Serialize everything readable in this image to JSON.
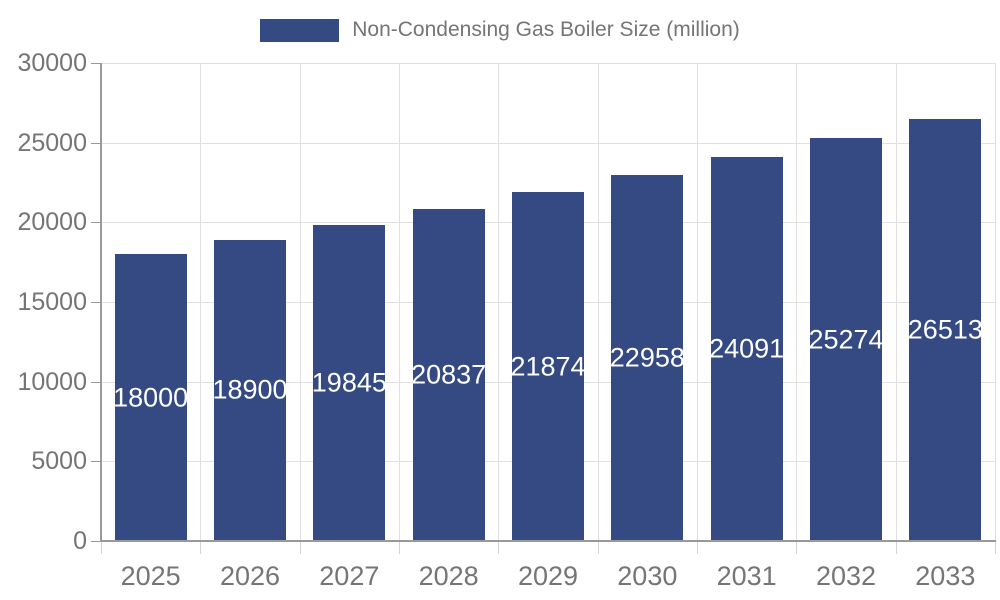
{
  "legend": {
    "label": "Non-Condensing Gas Boiler Size (million)"
  },
  "colors": {
    "bar": "#354A83",
    "axis_line": "#999999",
    "grid_line": "#E0E0E0",
    "x_tick_line": "#D4D4D4",
    "y_tick_line": "#999999",
    "axis_text": "#757575",
    "value_text": "#FFFFFF",
    "background": "#FFFFFF"
  },
  "chart_data": {
    "type": "bar",
    "title": "Non-Condensing Gas Boiler Size (million)",
    "categories": [
      "2025",
      "2026",
      "2027",
      "2028",
      "2029",
      "2030",
      "2031",
      "2032",
      "2033"
    ],
    "series": [
      {
        "name": "Non-Condensing Gas Boiler Size (million)",
        "values": [
          18000,
          18900,
          19845,
          20837,
          21874,
          22958,
          24091,
          25274,
          26513
        ]
      }
    ],
    "xlabel": "",
    "ylabel": "",
    "ylim": [
      0,
      30000
    ],
    "yticks": [
      0,
      5000,
      10000,
      15000,
      20000,
      25000,
      30000
    ],
    "grid": true,
    "legend_position": "top-center",
    "value_labels": "inside-center"
  }
}
